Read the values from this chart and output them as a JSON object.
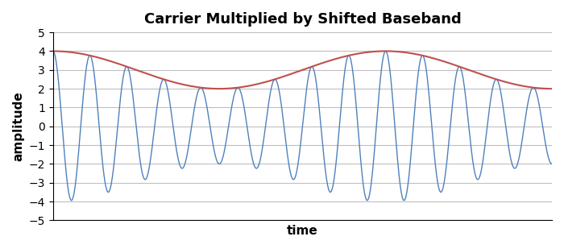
{
  "title": "Carrier Multiplied by Shifted Baseband",
  "xlabel": "time",
  "ylabel": "amplitude",
  "ylim": [
    -5,
    5
  ],
  "yticks": [
    -5,
    -4,
    -3,
    -2,
    -1,
    0,
    1,
    2,
    3,
    4,
    5
  ],
  "xlim": [
    0,
    1
  ],
  "carrier_freq": 13.5,
  "baseband_freq": 1.5,
  "baseband_dc": 3.0,
  "baseband_amp": 1.0,
  "carrier_amp": 1.0,
  "envelope_color": "#c0504d",
  "signal_color": "#4f81bd",
  "background_color": "#ffffff",
  "grid_color": "#bfbfbf",
  "title_fontsize": 13,
  "label_fontsize": 11,
  "signal_linewidth": 1.0,
  "envelope_linewidth": 1.5,
  "figsize": [
    7.0,
    3.09
  ],
  "dpi": 100
}
